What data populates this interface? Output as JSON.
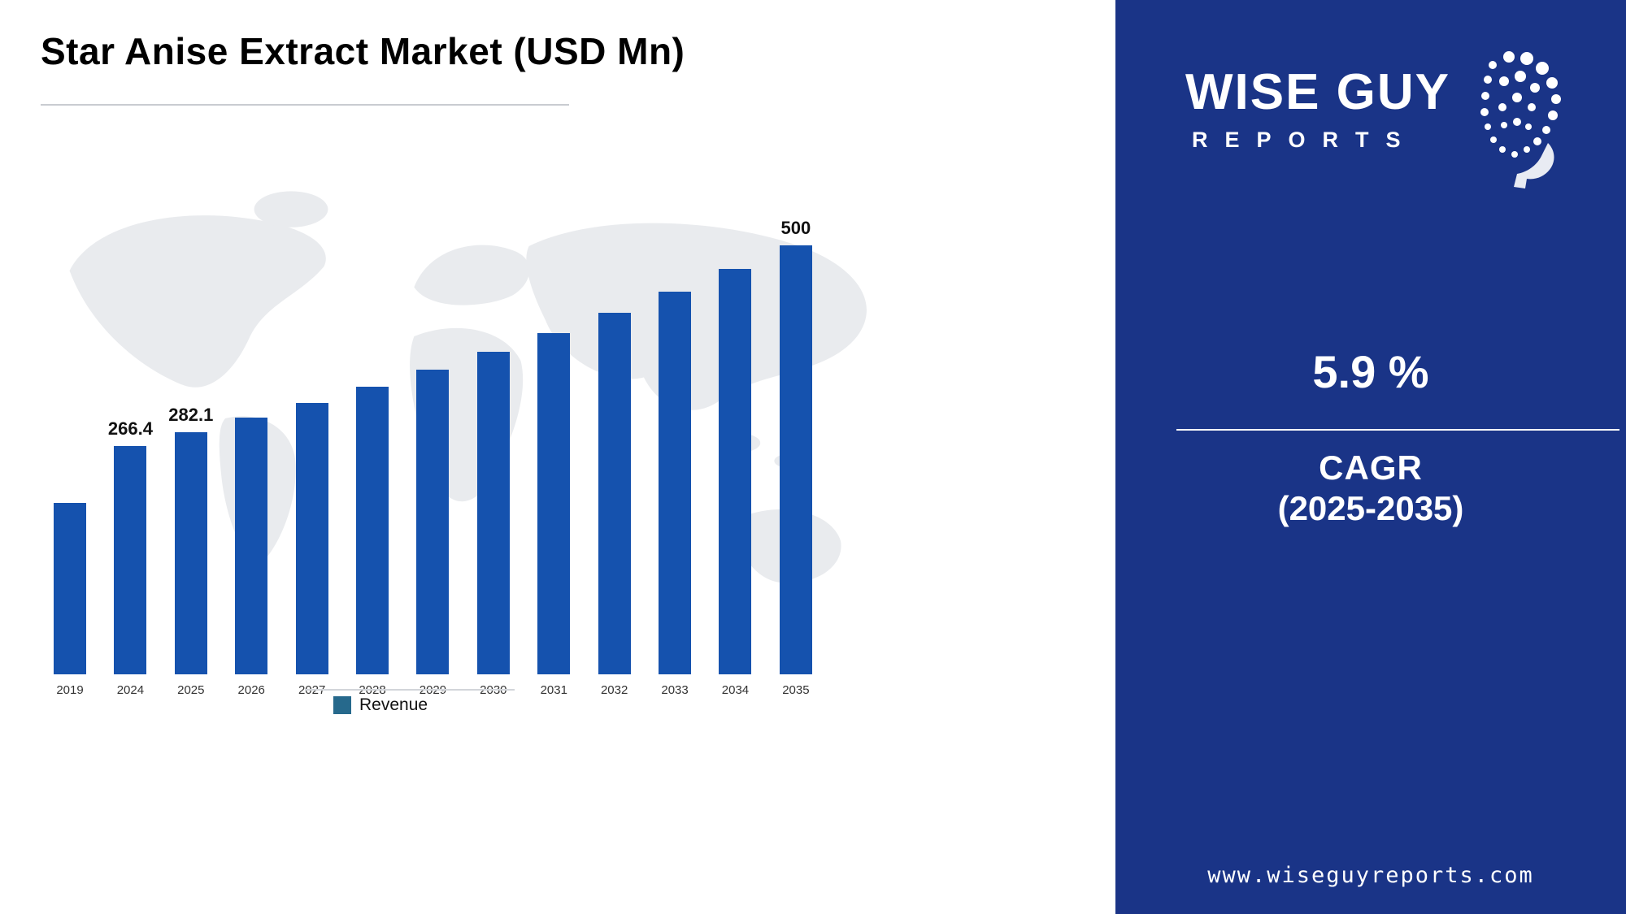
{
  "title": "Star Anise Extract Market (USD Mn)",
  "colors": {
    "bar": "#1552ae",
    "panel": "#1a3487",
    "legend_swatch": "#26698c"
  },
  "legend": {
    "label": "Revenue"
  },
  "brand": {
    "line1": "WISE GUY",
    "line2": "REPORTS",
    "website": "www.wiseguyreports.com"
  },
  "stats": {
    "cagr_value": "5.9 %",
    "cagr_label": "CAGR",
    "cagr_period": "(2025-2035)"
  },
  "chart_data": {
    "type": "bar",
    "title": "Star Anise Extract Market (USD Mn)",
    "xlabel": "",
    "ylabel": "",
    "categories": [
      "2019",
      "2024",
      "2025",
      "2026",
      "2027",
      "2028",
      "2029",
      "2030",
      "2031",
      "2032",
      "2033",
      "2034",
      "2035"
    ],
    "values": [
      200,
      266.4,
      282.1,
      298.7,
      316.4,
      335.0,
      354.8,
      375.7,
      397.9,
      421.4,
      446.2,
      472.6,
      500
    ],
    "value_labels": [
      "",
      "266.4",
      "282.1",
      "",
      "",
      "",
      "",
      "",
      "",
      "",
      "",
      "",
      "500"
    ],
    "series_name": "Revenue",
    "ylim": [
      0,
      530
    ],
    "grid": false,
    "legend_position": "bottom"
  }
}
